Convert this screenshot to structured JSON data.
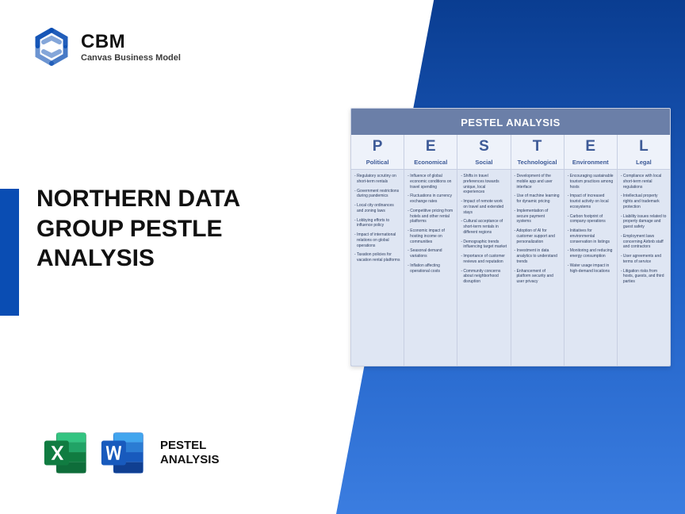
{
  "colors": {
    "brand_blue": "#0a4db3",
    "gradient_top": "#0a3d91",
    "gradient_mid": "#1e5fc4",
    "gradient_bot": "#3b7de0",
    "card_bg": "#6b7fa8",
    "cell_bg": "#eef2fa",
    "col_bg": "#dfe6f3",
    "border": "#c7cfe2",
    "heading_blue": "#3d5a97",
    "body_text": "#2b3c5f"
  },
  "logo": {
    "brand": "CBM",
    "tagline": "Canvas Business Model"
  },
  "title": "NORTHERN DATA GROUP PESTLE ANALYSIS",
  "bottom_label_line1": "PESTEL",
  "bottom_label_line2": "ANALYSIS",
  "icons": {
    "excel_name": "excel-icon",
    "word_name": "word-icon"
  },
  "pestel": {
    "card_title": "PESTEL ANALYSIS",
    "letters": [
      "P",
      "E",
      "S",
      "T",
      "E",
      "L"
    ],
    "categories": [
      "Political",
      "Economical",
      "Social",
      "Technological",
      "Environment",
      "Legal"
    ],
    "columns": [
      [
        "Regulatory scrutiny on short-term rentals",
        "Government restrictions during pandemics",
        "Local city ordinances and zoning laws",
        "Lobbying efforts to influence policy",
        "Impact of international relations on global operations",
        "Taxation policies for vacation rental platforms"
      ],
      [
        "Influence of global economic conditions on travel spending",
        "Fluctuations in currency exchange rates",
        "Competitive pricing from hotels and other rental platforms",
        "Economic impact of hosting income on communities",
        "Seasonal demand variations",
        "Inflation affecting operational costs"
      ],
      [
        "Shifts in travel preferences towards unique, local experiences",
        "Impact of remote work on travel and extended stays",
        "Cultural acceptance of short-term rentals in different regions",
        "Demographic trends influencing target market",
        "Importance of customer reviews and reputation",
        "Community concerns about neighborhood disruption"
      ],
      [
        "Development of the mobile app and user interface",
        "Use of machine learning for dynamic pricing",
        "Implementation of secure payment systems",
        "Adoption of AI for customer support and personalization",
        "Investment in data analytics to understand trends",
        "Enhancement of platform security and user privacy"
      ],
      [
        "Encouraging sustainable tourism practices among hosts",
        "Impact of increased tourist activity on local ecosystems",
        "Carbon footprint of company operations",
        "Initiatives for environmental conservation in listings",
        "Monitoring and reducing energy consumption",
        "Water usage impact in high-demand locations"
      ],
      [
        "Compliance with local short-term rental regulations",
        "Intellectual property rights and trademark protection",
        "Liability issues related to property damage and guest safety",
        "Employment laws concerning Airbnb staff and contractors",
        "User agreements and terms of service",
        "Litigation risks from hosts, guests, and third parties"
      ]
    ]
  }
}
